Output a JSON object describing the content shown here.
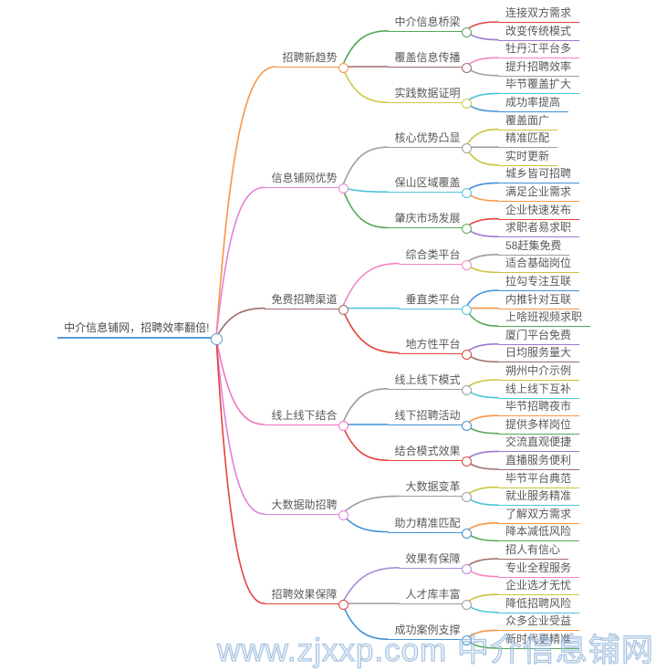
{
  "watermark": {
    "text": "www.zjxxp.com 中介信息铺网"
  },
  "mindmap": {
    "root": {
      "label": "中介信息铺网，招聘效率翻倍!",
      "color": "#5B9BD5"
    },
    "branches": [
      {
        "label": "招聘新趋势",
        "color": "#F79646",
        "children": [
          {
            "label": "中介信息桥梁",
            "color": "#55A855",
            "children": [
              {
                "label": "连接双方需求",
                "color": "#E2453C"
              },
              {
                "label": "改变传统模式",
                "color": "#9B79D0"
              }
            ]
          },
          {
            "label": "覆盖信息传播",
            "color": "#9E6B6B",
            "children": [
              {
                "label": "牡丹江平台多",
                "color": "#F286C2"
              },
              {
                "label": "提升招聘效率",
                "color": "#9E9E9E"
              }
            ]
          },
          {
            "label": "实践数据证明",
            "color": "#D2C84A",
            "children": [
              {
                "label": "毕节覆盖扩大",
                "color": "#4CC5DB"
              },
              {
                "label": "成功率提高",
                "color": "#4190D6"
              }
            ]
          }
        ]
      },
      {
        "label": "信息铺网优势",
        "color": "#E583D6",
        "children": [
          {
            "label": "核心优势凸显",
            "color": "#9E9E9E",
            "children": [
              {
                "label": "覆盖面广",
                "color": "#C9C33F"
              },
              {
                "label": "精准匹配",
                "color": "#9E9E9E"
              },
              {
                "label": "实时更新",
                "color": "#C9C33F"
              }
            ]
          },
          {
            "label": "保山区域覆盖",
            "color": "#4CC5DB",
            "children": [
              {
                "label": "城乡皆可招聘",
                "color": "#4190D6"
              },
              {
                "label": "满足企业需求",
                "color": "#F79646"
              }
            ]
          },
          {
            "label": "肇庆市场发展",
            "color": "#55A855",
            "children": [
              {
                "label": "企业快速发布",
                "color": "#E2453C"
              },
              {
                "label": "求职者易求职",
                "color": "#9B79D0"
              }
            ]
          }
        ]
      },
      {
        "label": "免费招聘渠道",
        "color": "#9E6B6B",
        "children": [
          {
            "label": "综合类平台",
            "color": "#F286C2",
            "children": [
              {
                "label": "58赶集免费",
                "color": "#9E9E9E"
              },
              {
                "label": "适合基础岗位",
                "color": "#C9C33F"
              }
            ]
          },
          {
            "label": "垂直类平台",
            "color": "#4CC5DB",
            "children": [
              {
                "label": "拉勾专注互联",
                "color": "#4190D6"
              },
              {
                "label": "内推针对互联",
                "color": "#F79646"
              },
              {
                "label": "上啥班视频求职",
                "color": "#55A855"
              }
            ]
          },
          {
            "label": "地方性平台",
            "color": "#E2453C",
            "children": [
              {
                "label": "厦门平台免费",
                "color": "#9B79D0"
              },
              {
                "label": "日均服务量大",
                "color": "#9E6B6B"
              }
            ]
          }
        ]
      },
      {
        "label": "线上线下结合",
        "color": "#F075C0",
        "children": [
          {
            "label": "线上线下模式",
            "color": "#9E9E9E",
            "children": [
              {
                "label": "朔州中介示例",
                "color": "#C9C33F"
              },
              {
                "label": "线上线下互补",
                "color": "#4CC5DB"
              }
            ]
          },
          {
            "label": "线下招聘活动",
            "color": "#4190D6",
            "children": [
              {
                "label": "毕节招聘夜市",
                "color": "#F79646"
              },
              {
                "label": "提供多样岗位",
                "color": "#55A855"
              }
            ]
          },
          {
            "label": "结合模式效果",
            "color": "#E2453C",
            "children": [
              {
                "label": "交流直观便捷",
                "color": "#9B79D0"
              },
              {
                "label": "直播服务便利",
                "color": "#9E6B6B"
              }
            ]
          }
        ]
      },
      {
        "label": "大数据助招聘",
        "color": "#DC82DC",
        "children": [
          {
            "label": "大数据变革",
            "color": "#9E9E9E",
            "children": [
              {
                "label": "毕节平台典范",
                "color": "#C9C33F"
              },
              {
                "label": "就业服务精准",
                "color": "#4CC5DB"
              }
            ]
          },
          {
            "label": "助力精准匹配",
            "color": "#4190D6",
            "children": [
              {
                "label": "了解双方需求",
                "color": "#F79646"
              },
              {
                "label": "降本减低风险",
                "color": "#55A855"
              }
            ]
          }
        ]
      },
      {
        "label": "招聘效果保障",
        "color": "#E2453C",
        "children": [
          {
            "label": "效果有保障",
            "color": "#A98BD8",
            "children": [
              {
                "label": "招人有信心",
                "color": "#9E6B6B"
              },
              {
                "label": "专业全程服务",
                "color": "#F286C2"
              }
            ]
          },
          {
            "label": "人才库丰富",
            "color": "#9E9E9E",
            "children": [
              {
                "label": "企业选才无忧",
                "color": "#C9C33F"
              },
              {
                "label": "降低招聘风险",
                "color": "#4CC5DB"
              }
            ]
          },
          {
            "label": "成功案例支撑",
            "color": "#4190D6",
            "children": [
              {
                "label": "众多企业受益",
                "color": "#F79646"
              },
              {
                "label": "新时代更精准",
                "color": "#55A855"
              }
            ]
          }
        ]
      }
    ]
  }
}
